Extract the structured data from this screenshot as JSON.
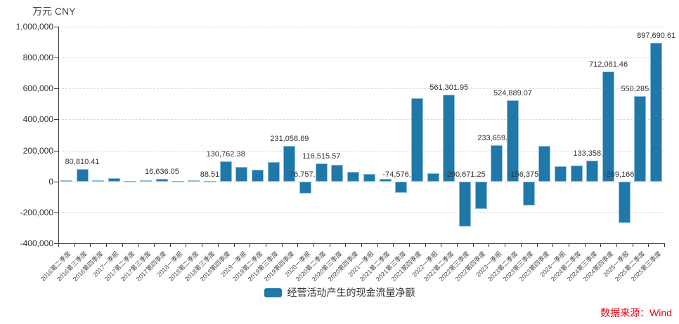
{
  "chart": {
    "unit_label": "万元 CNY"
  },
  "legend": {
    "label": "经营活动产生的现金流量净额"
  },
  "source": {
    "text": "数据来源：Wind",
    "color": "#e60012"
  },
  "chart_data": {
    "type": "bar",
    "title": "",
    "ylabel": "万元 CNY",
    "legend": "经营活动产生的现金流量净额",
    "legend_position": "bottom",
    "grid": "dashed-horizontal",
    "ylim": [
      -400000,
      1000000
    ],
    "y_tick_values": [
      1000000,
      800000,
      600000,
      400000,
      200000,
      0,
      -200000,
      -400000
    ],
    "y_tick_labels": [
      "1,000,000",
      "800,000",
      "600,000",
      "400,000",
      "200,000",
      "0",
      "-200,000",
      "-400,000"
    ],
    "colors": {
      "bar_fill": "#1f78a8",
      "bar_border": "#8fc0dc",
      "axis": "#333333",
      "grid": "#d9d9d9"
    },
    "categories": [
      "2016第二季度",
      "2016第三季度",
      "2016第四季度",
      "2017一季报",
      "2017第二季度",
      "2017第三季度",
      "2017第四季度",
      "2018一季报",
      "2018第二季度",
      "2018第三季度",
      "2018第四季度",
      "2019一季报",
      "2019第二季度",
      "2019第三季度",
      "2019第四季度",
      "2020一季报",
      "2020第二季度",
      "2020第三季度",
      "2020第四季度",
      "2021一季报",
      "2021第二季度",
      "2021第三季度",
      "2021第四季度",
      "2022一季报",
      "2022第二季度",
      "2022第三季度",
      "2022第四季度",
      "2023一季报",
      "2023第二季度",
      "2023第三季度",
      "2023第四季度",
      "2024一季报",
      "2024第二季度",
      "2024第三季度",
      "2024第四季度",
      "2025一季报",
      "2025第二季度",
      "2025第三季度"
    ],
    "values": [
      8000,
      80810.41,
      7000,
      20000,
      4000,
      9000,
      16636.05,
      2000,
      9000,
      88.51,
      130762.38,
      92000,
      77000,
      124000,
      231058.69,
      -76757.39,
      116515.57,
      109000,
      63000,
      50000,
      18000,
      -74576.97,
      540000,
      52000,
      561301.95,
      -290671.25,
      -180000,
      233659.28,
      524889.07,
      -156375.27,
      232000,
      97000,
      104000,
      133358.31,
      712081.46,
      -269166.05,
      550285.65,
      897690.61
    ],
    "point_labels": [
      null,
      "80,810.41",
      null,
      null,
      null,
      null,
      "16,636.05",
      null,
      null,
      "88.51",
      "130,762.38",
      null,
      null,
      null,
      "231,058.69",
      "-76,757.39",
      "116,515.57",
      null,
      null,
      null,
      null,
      "-74,576.97",
      null,
      null,
      "561,301.95",
      "-290,671.25",
      null,
      "233,659.28",
      "524,889.07",
      "-156,375.27",
      null,
      null,
      null,
      "133,358.31",
      "712,081.46",
      "-269,166.05",
      "550,285.65",
      "897,690.61"
    ]
  }
}
